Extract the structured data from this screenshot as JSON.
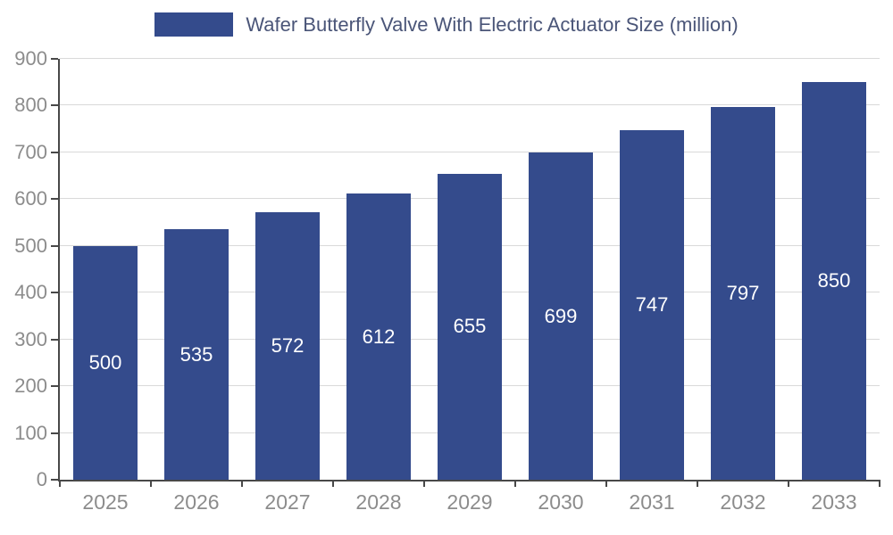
{
  "legend": {
    "label": "Wafer Butterfly Valve With Electric Actuator Size (million)"
  },
  "colors": {
    "bar": "#344b8c",
    "axis": "#484848",
    "grid": "#d9d9d9",
    "tick_label": "#8c8c8c",
    "value_label": "#ffffff",
    "legend_text": "#4a5578"
  },
  "chart_data": {
    "type": "bar",
    "title": "Wafer Butterfly Valve With Electric Actuator Size (million)",
    "categories": [
      "2025",
      "2026",
      "2027",
      "2028",
      "2029",
      "2030",
      "2031",
      "2032",
      "2033"
    ],
    "values": [
      500,
      535,
      572,
      612,
      655,
      699,
      747,
      797,
      850
    ],
    "xlabel": "",
    "ylabel": "",
    "ylim": [
      0,
      900
    ],
    "ytick_step": 100,
    "grid": true,
    "legend_position": "top",
    "value_labels": "centered-inside-bars"
  }
}
